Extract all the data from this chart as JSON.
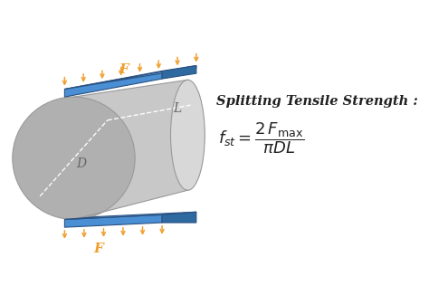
{
  "bg_color": "#ffffff",
  "cyl_body_color": "#c8c8c8",
  "cyl_left_face_color": "#b0b0b0",
  "cyl_right_face_color": "#d8d8d8",
  "cyl_edge_color": "#999999",
  "strip_front_color": "#4a8fd4",
  "strip_top_color": "#6ab0e8",
  "strip_side_color": "#2e6aa0",
  "strip_edge_color": "#2a5080",
  "arrow_color": "#f0a030",
  "dashed_color": "#ffffff",
  "label_color": "#666666",
  "formula_color": "#222222",
  "title_text": "Splitting Tensile Strength :",
  "label_L": "L",
  "label_D": "D",
  "label_F": "F",
  "title_fontsize": 10.5,
  "formula_fontsize": 13
}
